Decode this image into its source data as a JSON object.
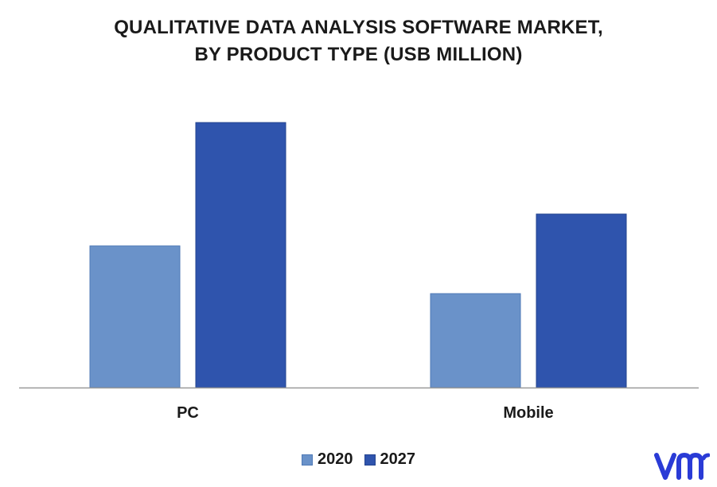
{
  "chart_data": {
    "type": "bar",
    "title_line1": "QUALITATIVE DATA ANALYSIS SOFTWARE MARKET,",
    "title_line2": "BY PRODUCT TYPE (USB MILLION)",
    "categories": [
      "PC",
      "Mobile"
    ],
    "series": [
      {
        "name": "2020",
        "values": [
          178,
          118
        ],
        "color": "#6a92c9",
        "stroke": "#4f79b6"
      },
      {
        "name": "2027",
        "values": [
          333,
          218
        ],
        "color": "#2f54ad",
        "stroke": "#23438f"
      }
    ],
    "ylim": [
      0,
      360
    ],
    "grid": false,
    "legend": "bottom"
  },
  "logo": {
    "name": "vmr-logo-icon",
    "color": "#2a3bd6"
  }
}
